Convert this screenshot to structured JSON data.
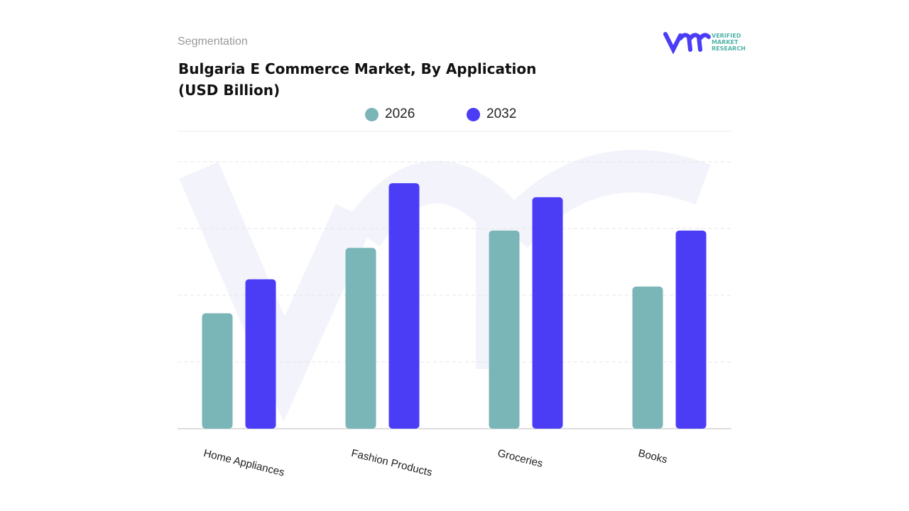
{
  "header": {
    "segment_label": "Segmentation",
    "title_line1": "Bulgaria E Commerce Market, By Application",
    "title_line2": "(USD Billion)",
    "logo_text": "VERIFIED MARKET RESEARCH"
  },
  "chart_data": {
    "type": "bar",
    "title": "Bulgaria E Commerce Market, By Application (USD Billion)",
    "categories": [
      "Home Appliances",
      "Fashion Products",
      "Groceries",
      "Books"
    ],
    "series": [
      {
        "name": "2026",
        "color": "#7ab5b8",
        "values": [
          1.73,
          2.71,
          2.97,
          2.13
        ]
      },
      {
        "name": "2032",
        "color": "#4b3cf5",
        "values": [
          2.24,
          3.68,
          3.47,
          2.97
        ]
      }
    ],
    "ylim": [
      0,
      4
    ],
    "grid": true,
    "legend": "top-center",
    "xlabel": "",
    "ylabel": ""
  }
}
